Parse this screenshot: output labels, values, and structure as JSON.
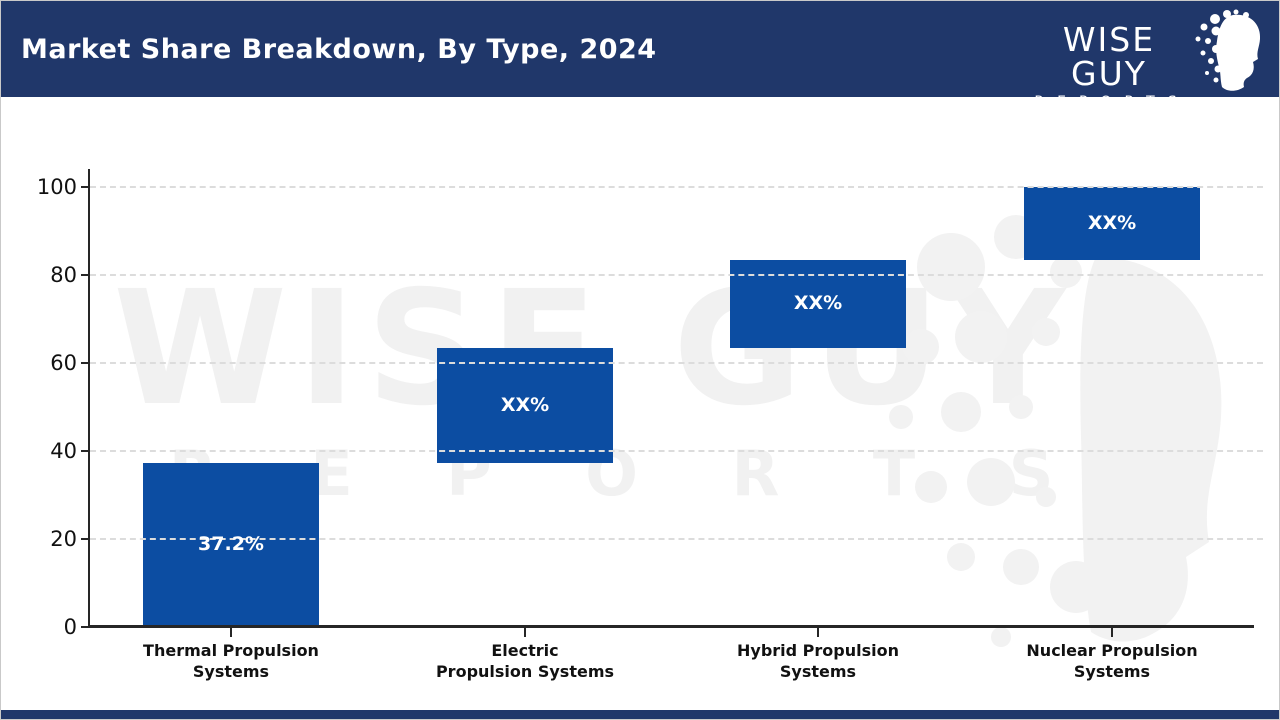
{
  "header": {
    "title": "Market Share Breakdown, By Type, 2024",
    "logo": {
      "line1": "WISE GUY",
      "line2": "REPORTS"
    }
  },
  "watermark": {
    "line1": "WISE GUY",
    "line2": "R E P O R T S"
  },
  "colors": {
    "header_navy": "#20376a",
    "bar_blue": "#0c4da2",
    "gridline": "#dcdcdc",
    "axis": "#262626",
    "watermark_gray": "#f1f1f1",
    "bar_label_white": "#ffffff"
  },
  "chart_data": {
    "type": "bar",
    "variant": "waterfall",
    "title": "Market Share Breakdown, By Type, 2024",
    "xlabel": "",
    "ylabel": "",
    "ylim": [
      0,
      100
    ],
    "yticks": [
      0,
      20,
      40,
      60,
      80,
      100
    ],
    "grid": "horizontal dashed, drawn above bars",
    "legend": "none",
    "categories": [
      "Thermal Propulsion\nSystems",
      "Electric\nPropulsion Systems",
      "Hybrid Propulsion\nSystems",
      "Nuclear Propulsion\nSystems"
    ],
    "bars": [
      {
        "category": "Thermal Propulsion Systems",
        "start": 0,
        "end": 37.2,
        "label": "37.2%"
      },
      {
        "category": "Electric Propulsion Systems",
        "start": 37.2,
        "end": 63.3,
        "label": "XX%"
      },
      {
        "category": "Hybrid Propulsion Systems",
        "start": 63.3,
        "end": 83.4,
        "label": "XX%"
      },
      {
        "category": "Nuclear Propulsion Systems",
        "start": 83.4,
        "end": 100,
        "label": "XX%"
      }
    ]
  }
}
